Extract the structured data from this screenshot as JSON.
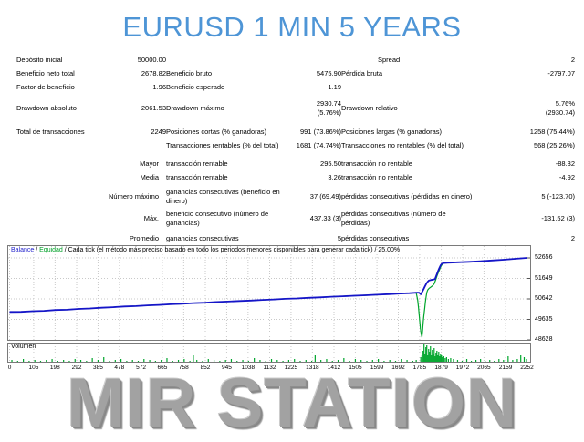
{
  "title": "EURUSD 1 MIN 5 YEARS",
  "colors": {
    "title": "#4e95d6",
    "balance": "#1515c8",
    "equity": "#00a52c",
    "volume": "#00a52c",
    "grid": "#c9c9c9",
    "border": "#7a7a7a",
    "watermark": "#a2a2a2"
  },
  "stats": {
    "rows": [
      {
        "l1": "Depósito inicial",
        "v1": "50000.00",
        "l2": "",
        "v2": "",
        "l3": "Spread",
        "v3": "2",
        "h": "h1",
        "gap": 0,
        "lr": false,
        "l3_indent": true
      },
      {
        "l1": "Beneficio neto total",
        "v1": "2678.82",
        "l2": "Beneficio bruto",
        "v2": "5475.90",
        "l3": "Pérdida bruta",
        "v3": "-2797.07",
        "h": "h1",
        "gap": 0,
        "lr": false
      },
      {
        "l1": "Factor de beneficio",
        "v1": "1.96",
        "l2": "Beneficio esperado",
        "v2": "1.19",
        "l3": "",
        "v3": "",
        "h": "h1",
        "gap": 0,
        "lr": false
      },
      {
        "l1": "Drawdown absoluto",
        "v1": "2061.53",
        "l2": "Drawdown máximo",
        "v2": "2930.74\n(5.76%)",
        "l3": "Drawdown relativo",
        "v3": "5.76%\n(2930.74)",
        "h": "h2",
        "gap": 4,
        "lr": false
      },
      {
        "l1": "Total de transacciones",
        "v1": "2249",
        "l2": "Posiciones cortas (% ganadoras)",
        "v2": "991 (73.86%)",
        "l3": "Posiciones largas (% ganadoras)",
        "v3": "1258 (75.44%)",
        "h": "h1",
        "gap": 6,
        "lr": false
      },
      {
        "l1": "",
        "v1": "",
        "l2": "Transacciones rentables (% del total)",
        "v2": "1681 (74.74%)",
        "l3": "Transacciones no rentables (% del total)",
        "v3": "568 (25.26%)",
        "h": "h1",
        "gap": 0,
        "lr": false
      },
      {
        "l1": "Mayor",
        "l2": "transacción rentable",
        "v2": "295.50",
        "l3": "transacción no rentable",
        "v3": "-88.32",
        "h": "h1",
        "gap": 5,
        "lr": true
      },
      {
        "l1": "Media",
        "l2": "transacción rentable",
        "v2": "3.26",
        "l3": "transacción no rentable",
        "v3": "-4.92",
        "h": "h1",
        "gap": 0,
        "lr": true
      },
      {
        "l1": "Número máximo",
        "l2": "ganancias consecutivas (beneficio en\ndinero)",
        "v2": "37 (69.49)",
        "l3": "pérdidas consecutivas (pérdidas en dinero)",
        "v3": "5 (-123.70)",
        "h": "h2",
        "gap": 2,
        "lr": true
      },
      {
        "l1": "Máx.",
        "l2": "beneficio consecutivo (número de\nganancias)",
        "v2": "437.33 (3)",
        "l3": "pérdidas consecutivas (número de\npérdidas)",
        "v3": "-131.52 (3)",
        "h": "h2",
        "gap": 0,
        "lr": true
      },
      {
        "l1": "Promedio",
        "l2": "ganancias consecutivas",
        "v2": "5",
        "l3": "pérdidas consecutivas",
        "v3": "2",
        "h": "h1",
        "gap": 2,
        "lr": true
      }
    ]
  },
  "chart": {
    "legend_parts": [
      {
        "text": "Balance",
        "color": "#2222cc"
      },
      {
        "text": " / ",
        "color": "#000000"
      },
      {
        "text": "Equidad",
        "color": "#00a028"
      },
      {
        "text": " / Cada tick (el método más preciso basado en todo los periodos menores disponibles para generar cada tick)  / 25.00%",
        "color": "#000000"
      }
    ],
    "volume_label": "Volumen"
  },
  "chart_data": {
    "type": "line",
    "x_ticks": [
      0,
      105,
      198,
      292,
      385,
      478,
      572,
      665,
      758,
      852,
      945,
      1038,
      1132,
      1225,
      1318,
      1412,
      1505,
      1599,
      1692,
      1785,
      1879,
      1972,
      2065,
      2159,
      2252
    ],
    "y_ticks": [
      52656,
      51649,
      50642,
      49635,
      48628
    ],
    "x_max": 2252,
    "y_top_value": 52656,
    "y_bottom_value": 48628,
    "series_names": [
      "Balance",
      "Equidad"
    ],
    "balance": [
      [
        0,
        50000
      ],
      [
        50,
        50005
      ],
      [
        100,
        50040
      ],
      [
        150,
        50055
      ],
      [
        200,
        50095
      ],
      [
        250,
        50110
      ],
      [
        300,
        50150
      ],
      [
        350,
        50170
      ],
      [
        400,
        50210
      ],
      [
        450,
        50235
      ],
      [
        500,
        50270
      ],
      [
        550,
        50290
      ],
      [
        600,
        50325
      ],
      [
        650,
        50345
      ],
      [
        700,
        50380
      ],
      [
        750,
        50400
      ],
      [
        800,
        50435
      ],
      [
        850,
        50455
      ],
      [
        900,
        50490
      ],
      [
        950,
        50510
      ],
      [
        1000,
        50540
      ],
      [
        1050,
        50560
      ],
      [
        1100,
        50595
      ],
      [
        1150,
        50615
      ],
      [
        1200,
        50645
      ],
      [
        1250,
        50665
      ],
      [
        1300,
        50695
      ],
      [
        1350,
        50720
      ],
      [
        1400,
        50750
      ],
      [
        1450,
        50770
      ],
      [
        1500,
        50800
      ],
      [
        1550,
        50820
      ],
      [
        1600,
        50850
      ],
      [
        1650,
        50875
      ],
      [
        1700,
        50905
      ],
      [
        1740,
        50925
      ],
      [
        1770,
        50945
      ],
      [
        1782,
        50950
      ],
      [
        1790,
        50870
      ],
      [
        1796,
        50990
      ],
      [
        1802,
        51120
      ],
      [
        1808,
        51260
      ],
      [
        1814,
        51390
      ],
      [
        1820,
        51490
      ],
      [
        1826,
        51550
      ],
      [
        1834,
        51575
      ],
      [
        1844,
        51590
      ],
      [
        1852,
        51620
      ],
      [
        1858,
        51800
      ],
      [
        1864,
        51980
      ],
      [
        1870,
        52140
      ],
      [
        1876,
        52290
      ],
      [
        1882,
        52375
      ],
      [
        1890,
        52405
      ],
      [
        1905,
        52415
      ],
      [
        1950,
        52440
      ],
      [
        2000,
        52465
      ],
      [
        2050,
        52495
      ],
      [
        2100,
        52530
      ],
      [
        2150,
        52565
      ],
      [
        2200,
        52610
      ],
      [
        2252,
        52656
      ]
    ],
    "equity_event": [
      [
        1770,
        50945
      ],
      [
        1776,
        50600
      ],
      [
        1780,
        50200
      ],
      [
        1784,
        49700
      ],
      [
        1788,
        49200
      ],
      [
        1792,
        48900
      ],
      [
        1795,
        48760
      ],
      [
        1798,
        49150
      ],
      [
        1801,
        49550
      ],
      [
        1804,
        49900
      ],
      [
        1807,
        50200
      ],
      [
        1810,
        50500
      ],
      [
        1813,
        50750
      ],
      [
        1816,
        50950
      ],
      [
        1820,
        51080
      ],
      [
        1826,
        51160
      ],
      [
        1834,
        51230
      ],
      [
        1842,
        51300
      ],
      [
        1848,
        51380
      ],
      [
        1854,
        51560
      ],
      [
        1860,
        51760
      ],
      [
        1866,
        51930
      ],
      [
        1872,
        52090
      ],
      [
        1878,
        52250
      ],
      [
        1884,
        52350
      ],
      [
        1890,
        52400
      ],
      [
        1905,
        52415
      ]
    ],
    "volume": [
      [
        10,
        2
      ],
      [
        35,
        1
      ],
      [
        60,
        3
      ],
      [
        85,
        1
      ],
      [
        110,
        2
      ],
      [
        135,
        1
      ],
      [
        160,
        2
      ],
      [
        185,
        3
      ],
      [
        210,
        1
      ],
      [
        235,
        2
      ],
      [
        260,
        1
      ],
      [
        285,
        3
      ],
      [
        310,
        2
      ],
      [
        335,
        1
      ],
      [
        360,
        4
      ],
      [
        385,
        2
      ],
      [
        410,
        5
      ],
      [
        435,
        1
      ],
      [
        460,
        2
      ],
      [
        485,
        3
      ],
      [
        510,
        1
      ],
      [
        535,
        2
      ],
      [
        560,
        1
      ],
      [
        585,
        3
      ],
      [
        610,
        2
      ],
      [
        635,
        1
      ],
      [
        660,
        2
      ],
      [
        685,
        4
      ],
      [
        710,
        1
      ],
      [
        735,
        2
      ],
      [
        760,
        3
      ],
      [
        785,
        1
      ],
      [
        800,
        7
      ],
      [
        815,
        2
      ],
      [
        840,
        1
      ],
      [
        865,
        3
      ],
      [
        890,
        2
      ],
      [
        915,
        1
      ],
      [
        940,
        2
      ],
      [
        965,
        3
      ],
      [
        990,
        1
      ],
      [
        1015,
        2
      ],
      [
        1040,
        1
      ],
      [
        1065,
        4
      ],
      [
        1090,
        2
      ],
      [
        1115,
        1
      ],
      [
        1140,
        3
      ],
      [
        1165,
        2
      ],
      [
        1190,
        1
      ],
      [
        1215,
        2
      ],
      [
        1240,
        3
      ],
      [
        1265,
        1
      ],
      [
        1290,
        2
      ],
      [
        1315,
        1
      ],
      [
        1330,
        7
      ],
      [
        1355,
        2
      ],
      [
        1380,
        3
      ],
      [
        1405,
        1
      ],
      [
        1430,
        2
      ],
      [
        1455,
        4
      ],
      [
        1480,
        1
      ],
      [
        1505,
        3
      ],
      [
        1530,
        2
      ],
      [
        1555,
        1
      ],
      [
        1580,
        2
      ],
      [
        1605,
        3
      ],
      [
        1630,
        1
      ],
      [
        1655,
        2
      ],
      [
        1680,
        1
      ],
      [
        1705,
        3
      ],
      [
        1730,
        2
      ],
      [
        1755,
        1
      ],
      [
        1770,
        2
      ],
      [
        1790,
        5
      ],
      [
        1795,
        8
      ],
      [
        1800,
        12
      ],
      [
        1804,
        20
      ],
      [
        1808,
        9
      ],
      [
        1812,
        16
      ],
      [
        1816,
        18
      ],
      [
        1820,
        8
      ],
      [
        1824,
        14
      ],
      [
        1828,
        11
      ],
      [
        1832,
        17
      ],
      [
        1836,
        7
      ],
      [
        1840,
        13
      ],
      [
        1844,
        9
      ],
      [
        1848,
        15
      ],
      [
        1852,
        6
      ],
      [
        1856,
        10
      ],
      [
        1860,
        12
      ],
      [
        1864,
        8
      ],
      [
        1868,
        11
      ],
      [
        1872,
        6
      ],
      [
        1876,
        9
      ],
      [
        1880,
        7
      ],
      [
        1885,
        5
      ],
      [
        1890,
        6
      ],
      [
        1896,
        4
      ],
      [
        1902,
        5
      ],
      [
        1910,
        3
      ],
      [
        1920,
        4
      ],
      [
        1932,
        3
      ],
      [
        1950,
        2
      ],
      [
        1970,
        1
      ],
      [
        1990,
        3
      ],
      [
        2010,
        1
      ],
      [
        2030,
        2
      ],
      [
        2050,
        3
      ],
      [
        2070,
        1
      ],
      [
        2090,
        2
      ],
      [
        2110,
        1
      ],
      [
        2130,
        3
      ],
      [
        2150,
        2
      ],
      [
        2170,
        6
      ],
      [
        2190,
        2
      ],
      [
        2210,
        3
      ],
      [
        2225,
        8
      ],
      [
        2240,
        5
      ],
      [
        2250,
        3
      ]
    ]
  },
  "watermark": "MIR STATION"
}
